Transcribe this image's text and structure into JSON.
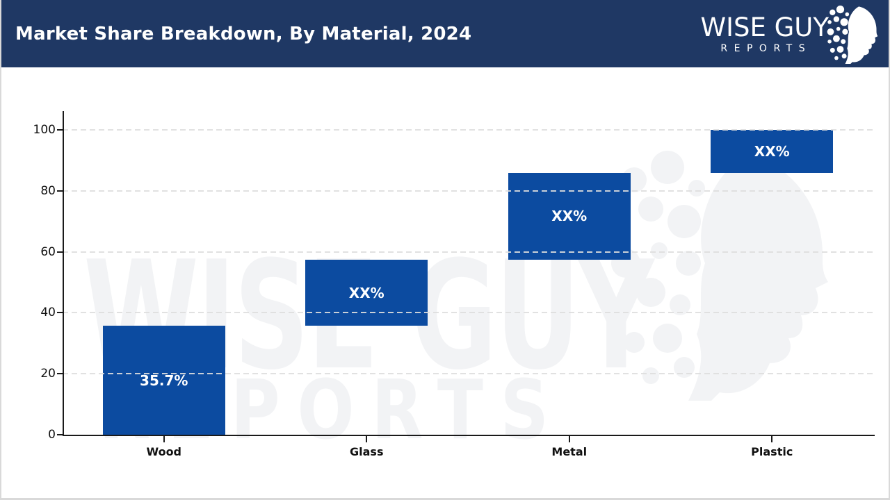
{
  "header": {
    "title": "Market Share Breakdown, By Material, 2024",
    "logo": {
      "line1": "WISE GUY",
      "line2": "REPORTS"
    }
  },
  "watermark": {
    "line1": "WISE GUY",
    "line2": "REPORTS"
  },
  "colors": {
    "header_bg": "#1f3864",
    "bar": "#0c4ba0",
    "grid": "#dedede",
    "axis": "#1a1a1a",
    "bar_label": "#ffffff",
    "watermark": "#f2f3f5"
  },
  "chart_data": {
    "type": "bar",
    "subtype": "waterfall-floating-bars",
    "title": "Market Share Breakdown, By Material, 2024",
    "categories": [
      "Wood",
      "Glass",
      "Metal",
      "Plastic"
    ],
    "segments": [
      {
        "category": "Wood",
        "start": 0,
        "end": 35.7,
        "label": "35.7%"
      },
      {
        "category": "Glass",
        "start": 35.7,
        "end": 57.4,
        "label": "XX%"
      },
      {
        "category": "Metal",
        "start": 57.4,
        "end": 85.9,
        "label": "XX%"
      },
      {
        "category": "Plastic",
        "start": 85.9,
        "end": 100,
        "label": "XX%"
      }
    ],
    "xlabel": "",
    "ylabel": "",
    "ylim": [
      0,
      100
    ],
    "yticks": [
      0,
      20,
      40,
      60,
      80,
      100
    ],
    "grid": "horizontal-dashed-drawn-over-bars",
    "legend": "none"
  }
}
